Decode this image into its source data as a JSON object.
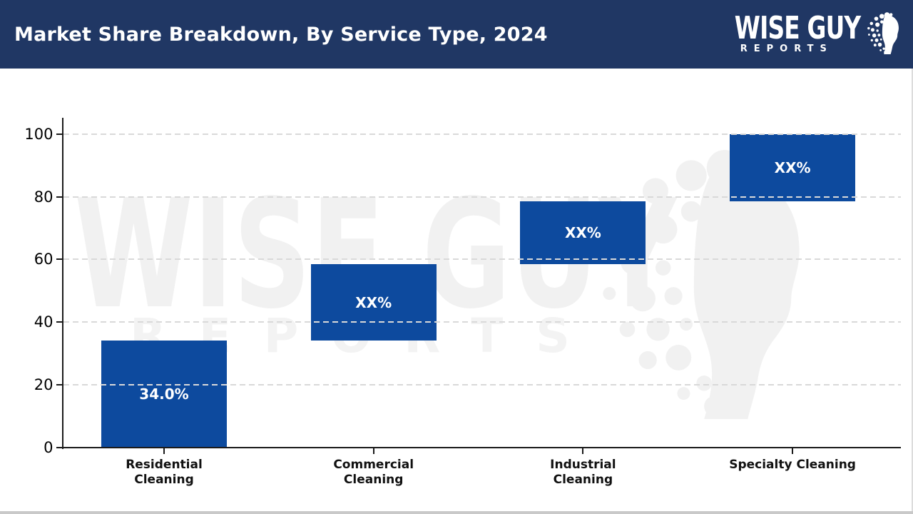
{
  "header": {
    "title": "Market Share Breakdown, By Service Type, 2024",
    "logo": {
      "line1": "WISE GUY",
      "line2": "REPORTS"
    },
    "background_color": "#203764"
  },
  "watermark": {
    "line1": "WISE GUY",
    "line2": "REPORTS"
  },
  "chart_data": {
    "type": "bar",
    "subtype": "waterfall",
    "title": "Market Share Breakdown, By Service Type, 2024",
    "categories": [
      "Residential Cleaning",
      "Commercial Cleaning",
      "Industrial Cleaning",
      "Specialty Cleaning"
    ],
    "category_label_lines": [
      [
        "Residential",
        "Cleaning"
      ],
      [
        "Commercial",
        "Cleaning"
      ],
      [
        "Industrial",
        "Cleaning"
      ],
      [
        "Specialty Cleaning"
      ]
    ],
    "segments": [
      {
        "category": "Residential Cleaning",
        "start": 0,
        "end": 34,
        "label": "34.0%"
      },
      {
        "category": "Commercial Cleaning",
        "start": 34,
        "end": 58.5,
        "label": "XX%"
      },
      {
        "category": "Industrial Cleaning",
        "start": 58.5,
        "end": 78.5,
        "label": "XX%"
      },
      {
        "category": "Specialty Cleaning",
        "start": 78.5,
        "end": 100,
        "label": "XX%"
      }
    ],
    "ylim": [
      0,
      100
    ],
    "yticks": [
      0,
      20,
      40,
      60,
      80,
      100
    ],
    "xlabel": "",
    "ylabel": "",
    "grid": "horizontal-dashed",
    "legend": "none",
    "bar_color": "#0d4a9e",
    "bar_label_color": "#ffffff",
    "gridline_color": "#d9d9d9",
    "axis_color": "#1a1a1a"
  }
}
